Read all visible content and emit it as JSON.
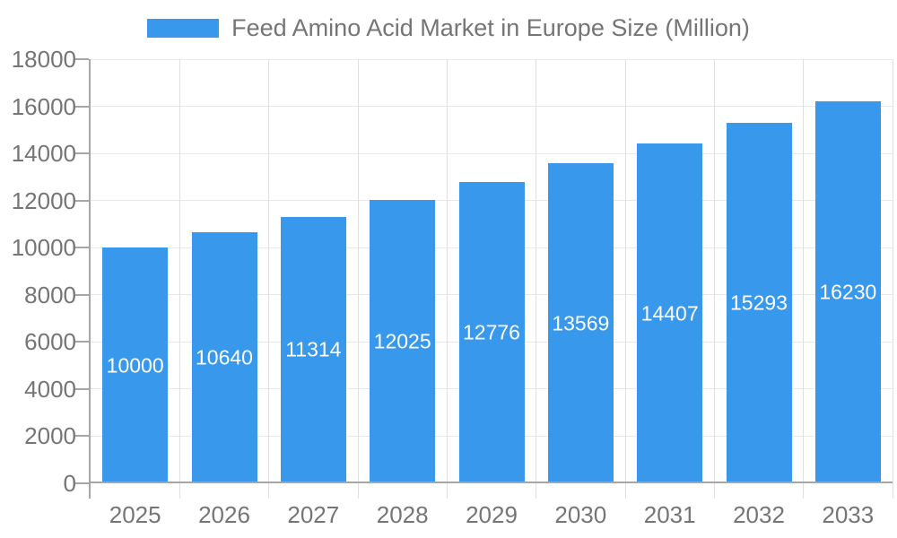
{
  "chart_data": {
    "type": "bar",
    "title": "Feed Amino Acid Market in Europe Size (Million)",
    "legend_entries": [
      "Feed Amino Acid Market in Europe Size (Million)"
    ],
    "legend_position": "top-center",
    "categories": [
      "2025",
      "2026",
      "2027",
      "2028",
      "2029",
      "2030",
      "2031",
      "2032",
      "2033"
    ],
    "values": [
      10000,
      10640,
      11314,
      12025,
      12776,
      13569,
      14407,
      15293,
      16230
    ],
    "value_labels": [
      "10000",
      "10640",
      "11314",
      "12025",
      "12776",
      "13569",
      "14407",
      "15293",
      "16230"
    ],
    "value_labels_position": "inside-center",
    "xlabel": "",
    "ylabel": "",
    "ylim": [
      0,
      18000
    ],
    "ytick_step": 2000,
    "yticks": [
      0,
      2000,
      4000,
      6000,
      8000,
      10000,
      12000,
      14000,
      16000,
      18000
    ],
    "grid": "horizontal-and-vertical"
  },
  "colors": {
    "bar": "#3798EC",
    "value_label_text": "#FFFFFF",
    "axis_text": "#757575",
    "legend_text": "#757575",
    "axis_line": "#A6A6A6",
    "gridline_h": "#E8E8E8",
    "gridline_v": "#E0E0E0",
    "background": "#FFFFFF"
  }
}
